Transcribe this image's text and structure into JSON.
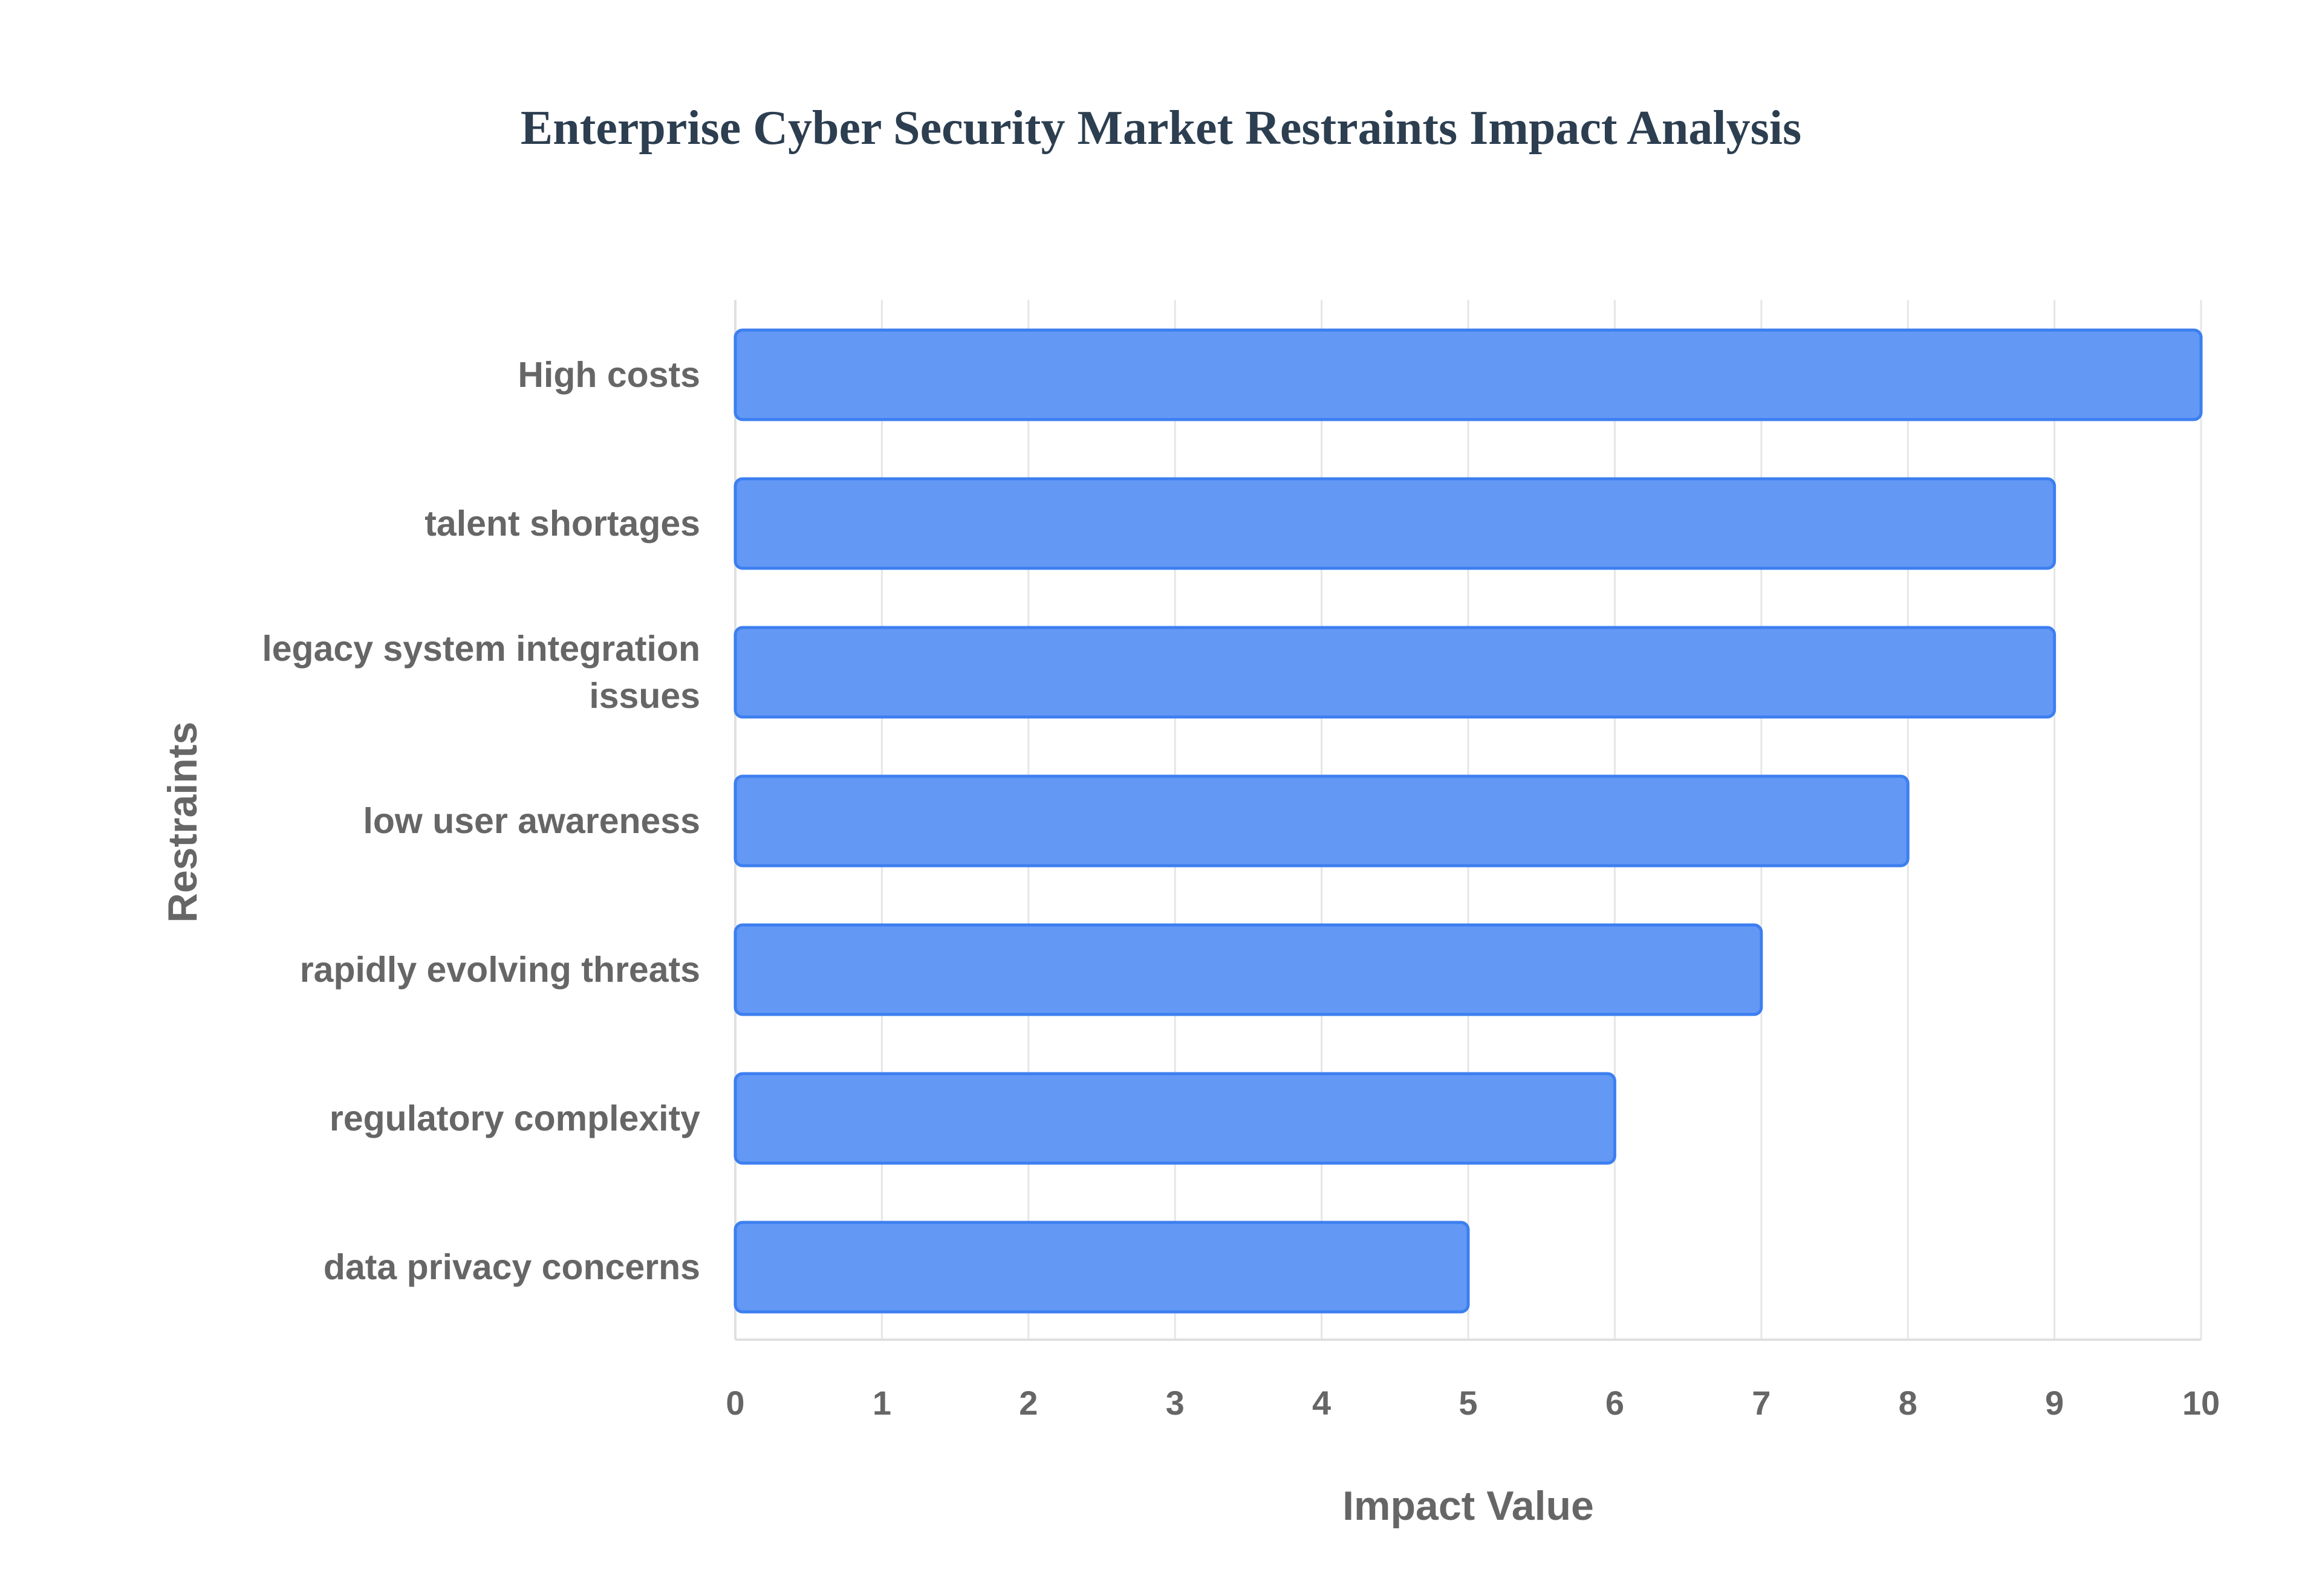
{
  "chart_data": {
    "type": "bar",
    "orientation": "horizontal",
    "title": "Enterprise Cyber Security Market Restraints Impact Analysis",
    "xlabel": "Impact Value",
    "ylabel": "Restraints",
    "categories": [
      [
        "High costs"
      ],
      [
        "talent shortages"
      ],
      [
        "legacy system integration",
        "issues"
      ],
      [
        "low user awareness"
      ],
      [
        "rapidly evolving threats"
      ],
      [
        "regulatory complexity"
      ],
      [
        "data privacy concerns"
      ]
    ],
    "values": [
      10,
      9,
      9,
      8,
      7,
      6,
      5
    ],
    "xlim": [
      0,
      10
    ],
    "xticks": [
      "0",
      "1",
      "2",
      "3",
      "4",
      "5",
      "6",
      "7",
      "8",
      "9",
      "10"
    ],
    "grid": true,
    "legend": "none",
    "colors": {
      "bar_fill": "#6399f5",
      "bar_stroke": "#3d7ff0",
      "title": "#2c3e50",
      "text": "#666666",
      "grid": "#e6e6e6"
    }
  }
}
